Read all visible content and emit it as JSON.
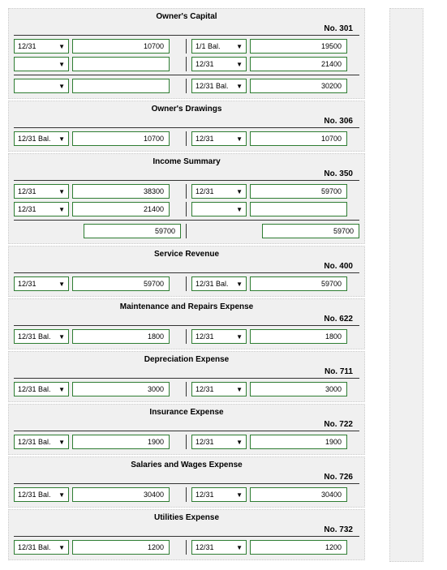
{
  "accounts": [
    {
      "title": "Owner's Capital",
      "no": "No. 301",
      "rows": [
        {
          "left_sel": "12/31",
          "left_val": "10700",
          "right_sel": "1/1 Bal.",
          "right_val": "19500"
        },
        {
          "left_sel": "",
          "left_val": "",
          "right_sel": "12/31",
          "right_val": "21400"
        }
      ],
      "totals": [
        {
          "left_sel": "",
          "left_val": "",
          "right_sel": "12/31 Bal.",
          "right_val": "30200"
        }
      ]
    },
    {
      "title": "Owner's Drawings",
      "no": "No. 306",
      "rows": [
        {
          "left_sel": "12/31 Bal.",
          "left_val": "10700",
          "right_sel": "12/31",
          "right_val": "10700"
        }
      ],
      "totals": []
    },
    {
      "title": "Income Summary",
      "no": "No. 350",
      "rows": [
        {
          "left_sel": "12/31",
          "left_val": "38300",
          "right_sel": "12/31",
          "right_val": "59700"
        },
        {
          "left_sel": "12/31",
          "left_val": "21400",
          "right_sel": "",
          "right_val": ""
        }
      ],
      "totals": [
        {
          "left_val": "59700",
          "right_val": "59700",
          "novals_sel": true
        }
      ]
    },
    {
      "title": "Service Revenue",
      "no": "No. 400",
      "rows": [
        {
          "left_sel": "12/31",
          "left_val": "59700",
          "right_sel": "12/31 Bal.",
          "right_val": "59700"
        }
      ],
      "totals": []
    },
    {
      "title": "Maintenance and Repairs Expense",
      "no": "No. 622",
      "rows": [
        {
          "left_sel": "12/31 Bal.",
          "left_val": "1800",
          "right_sel": "12/31",
          "right_val": "1800"
        }
      ],
      "totals": []
    },
    {
      "title": "Depreciation Expense",
      "no": "No. 711",
      "rows": [
        {
          "left_sel": "12/31 Bal.",
          "left_val": "3000",
          "right_sel": "12/31",
          "right_val": "3000"
        }
      ],
      "totals": []
    },
    {
      "title": "Insurance Expense",
      "no": "No. 722",
      "rows": [
        {
          "left_sel": "12/31 Bal.",
          "left_val": "1900",
          "right_sel": "12/31",
          "right_val": "1900"
        }
      ],
      "totals": []
    },
    {
      "title": "Salaries and Wages Expense",
      "no": "No. 726",
      "rows": [
        {
          "left_sel": "12/31 Bal.",
          "left_val": "30400",
          "right_sel": "12/31",
          "right_val": "30400"
        }
      ],
      "totals": []
    },
    {
      "title": "Utilities Expense",
      "no": "No. 732",
      "rows": [
        {
          "left_sel": "12/31 Bal.",
          "left_val": "1200",
          "right_sel": "12/31",
          "right_val": "1200"
        }
      ],
      "totals": []
    }
  ]
}
